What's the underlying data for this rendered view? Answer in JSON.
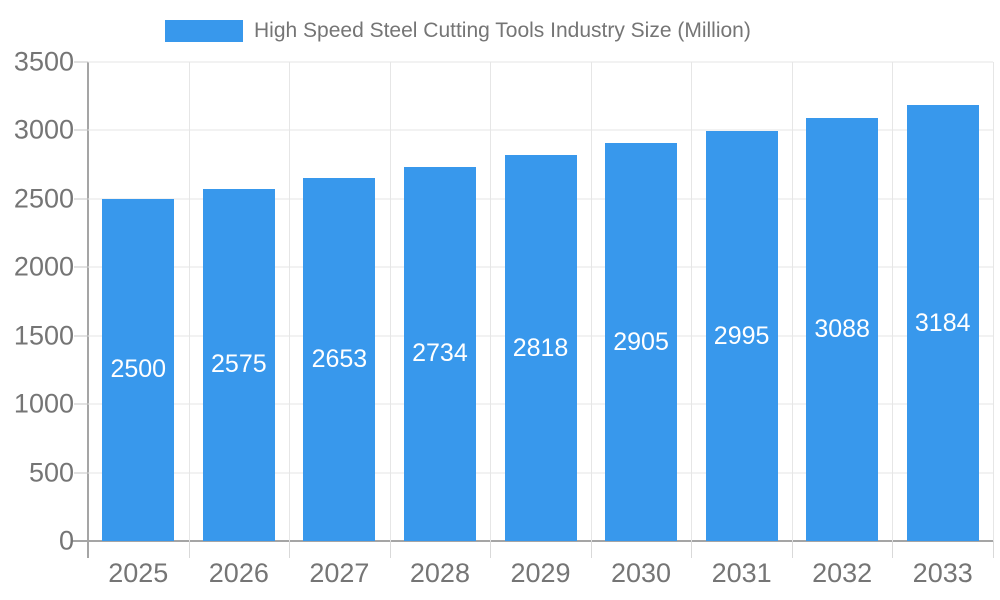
{
  "legend": {
    "label": "High Speed Steel Cutting Tools Industry Size (Million)"
  },
  "chart_data": {
    "type": "bar",
    "title": "High Speed Steel Cutting Tools Industry Size (Million)",
    "categories": [
      "2025",
      "2026",
      "2027",
      "2028",
      "2029",
      "2030",
      "2031",
      "2032",
      "2033"
    ],
    "values": [
      2500,
      2575,
      2653,
      2734,
      2818,
      2905,
      2995,
      3088,
      3184
    ],
    "xlabel": "",
    "ylabel": "",
    "ylim": [
      0,
      3500
    ],
    "yticks": [
      0,
      500,
      1000,
      1500,
      2000,
      2500,
      3000,
      3500
    ],
    "grid": true,
    "legend_position": "top",
    "bar_labels_inside": true,
    "colors": {
      "bar_color": "#3898EC",
      "bar_label_color": "#FFFFFF",
      "axis_text_color": "#757575",
      "grid_color": "#E6E6E6",
      "axis_line_color": "#A5A5A5"
    }
  }
}
